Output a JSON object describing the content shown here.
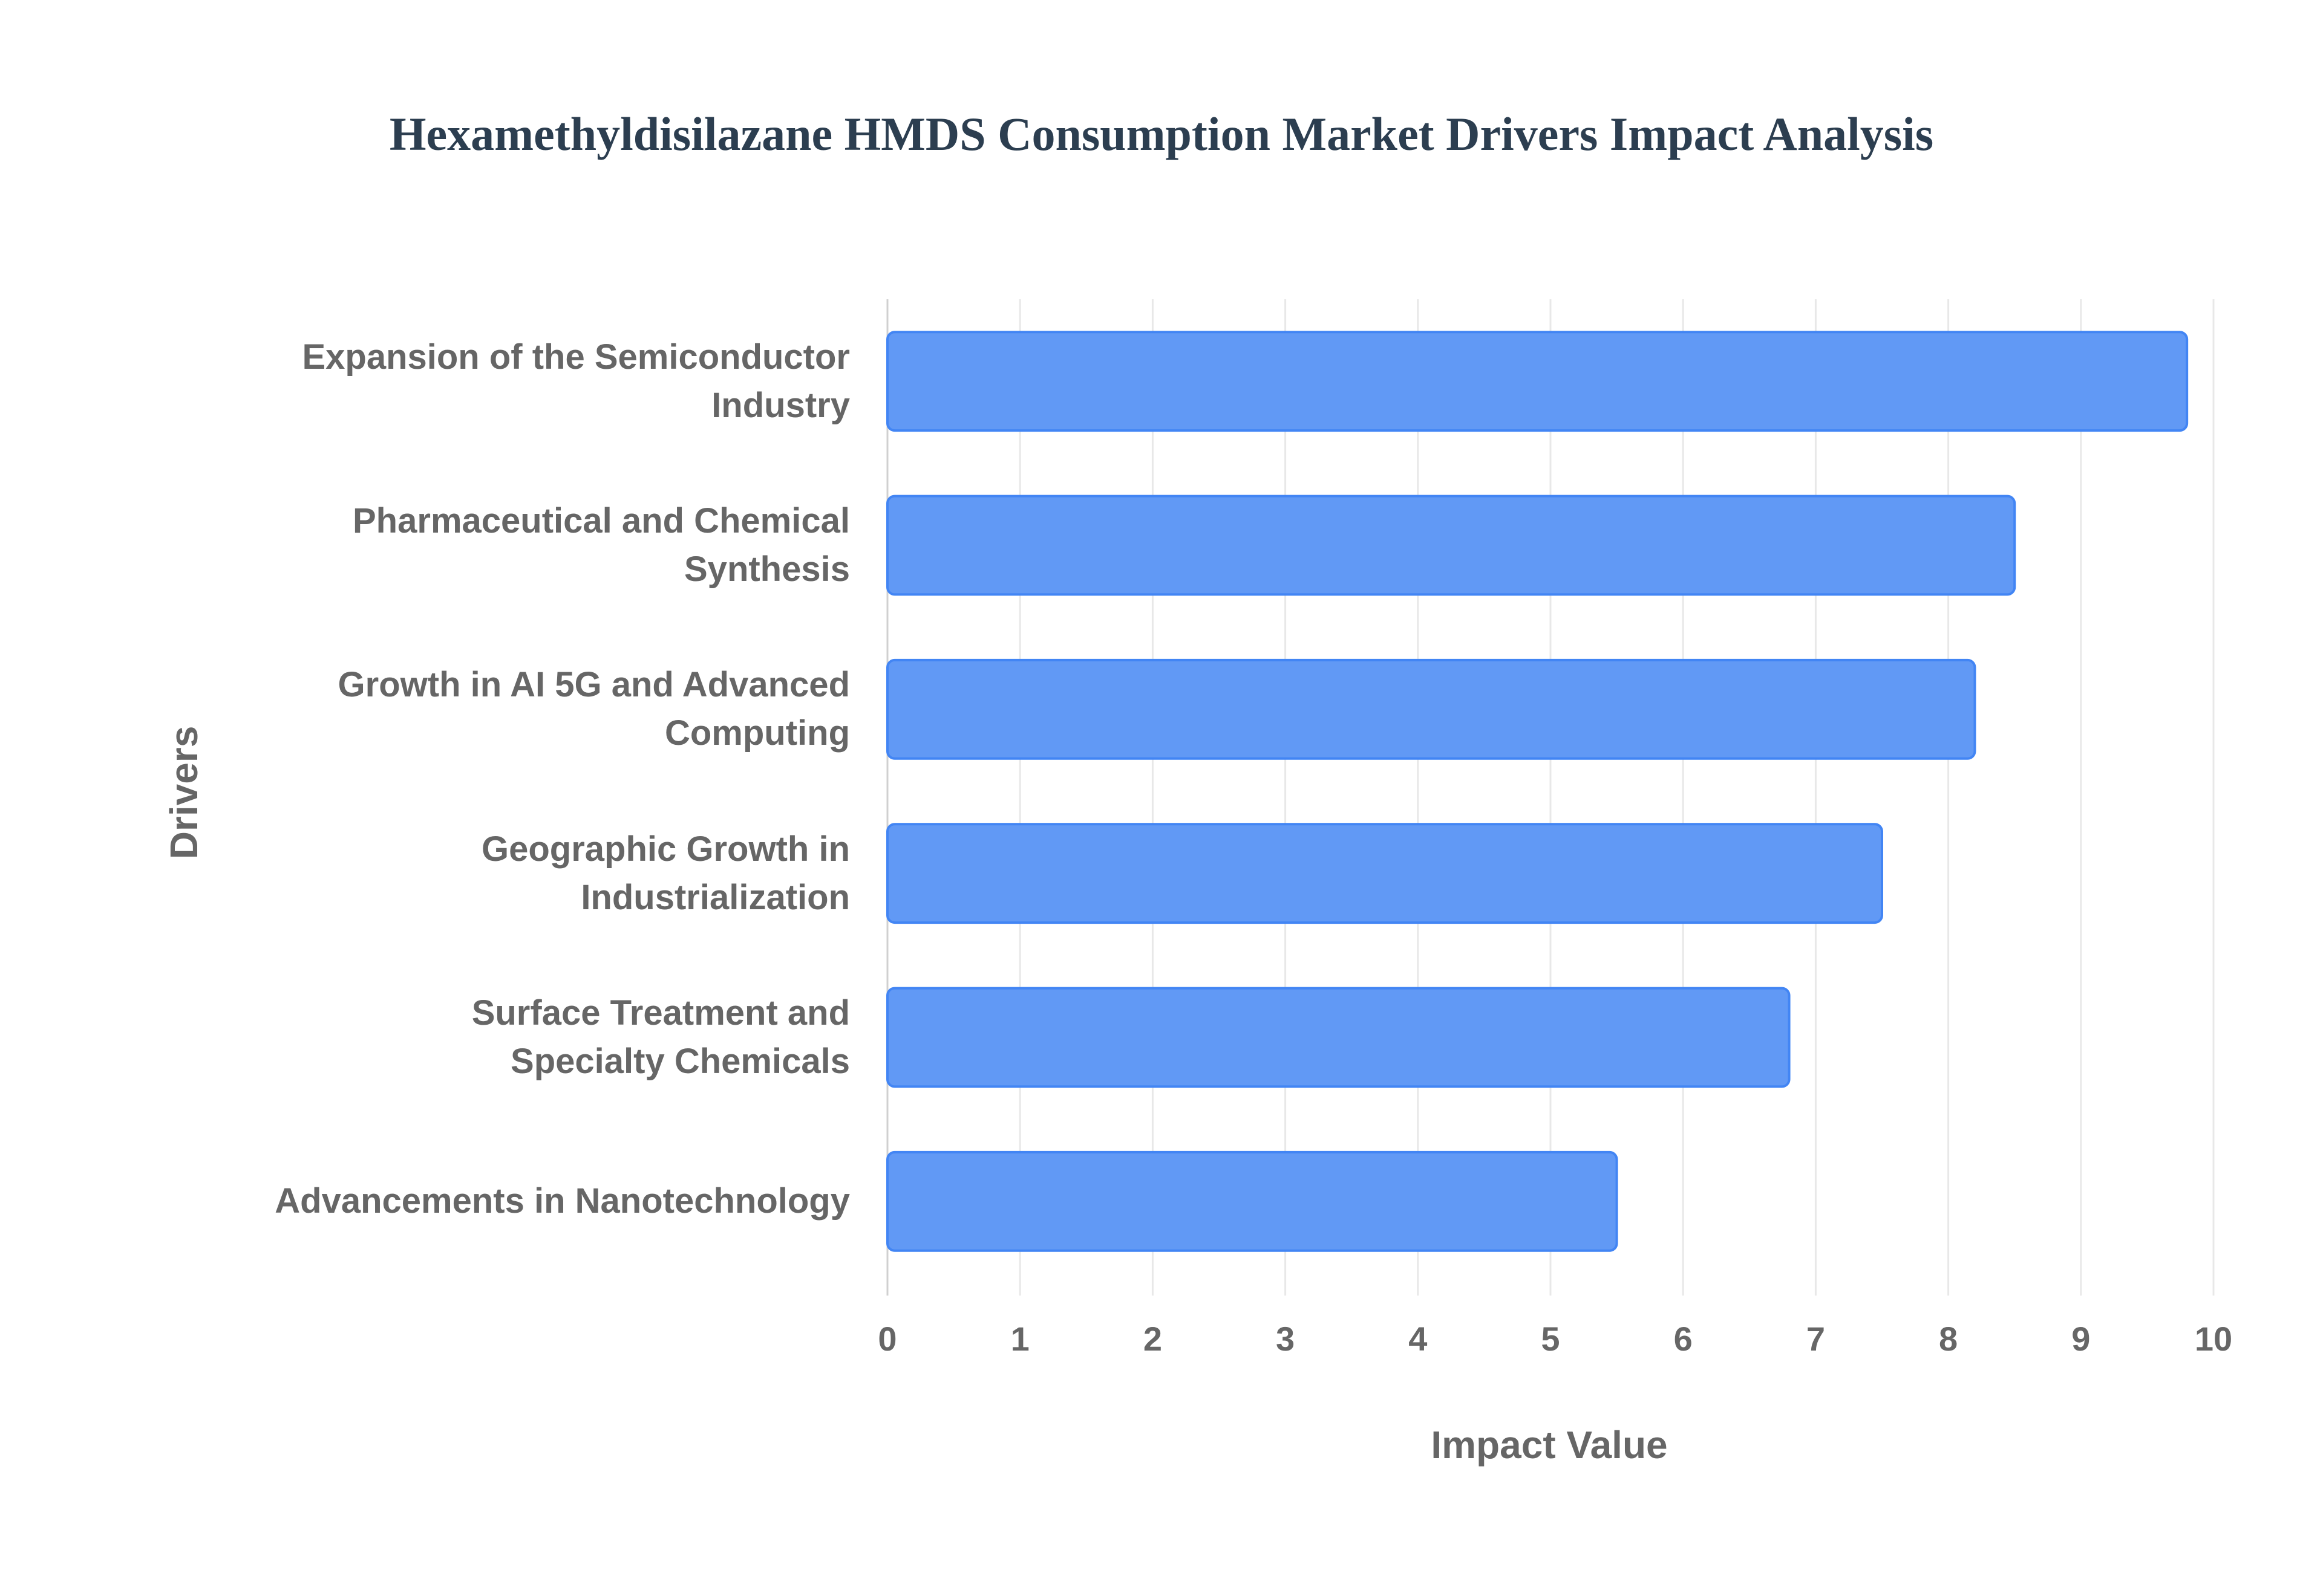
{
  "chart_data": {
    "type": "bar",
    "orientation": "horizontal",
    "title": "Hexamethyldisilazane HMDS Consumption Market Drivers Impact Analysis",
    "x_label": "Impact Value",
    "y_label": "Drivers",
    "categories": [
      "Expansion of the Semiconductor\nIndustry",
      "Pharmaceutical and Chemical\nSynthesis",
      "Growth in AI 5G and Advanced\nComputing",
      "Geographic Growth in\nIndustrialization",
      "Surface Treatment and\nSpecialty Chemicals",
      "Advancements in Nanotechnology"
    ],
    "values": [
      9.8,
      8.5,
      8.2,
      7.5,
      6.8,
      5.5
    ],
    "color": "#6199f5",
    "xlim": [
      0,
      10
    ],
    "xticks": [
      0,
      1,
      2,
      3,
      4,
      5,
      6,
      7,
      8,
      9,
      10
    ],
    "grid": true
  }
}
